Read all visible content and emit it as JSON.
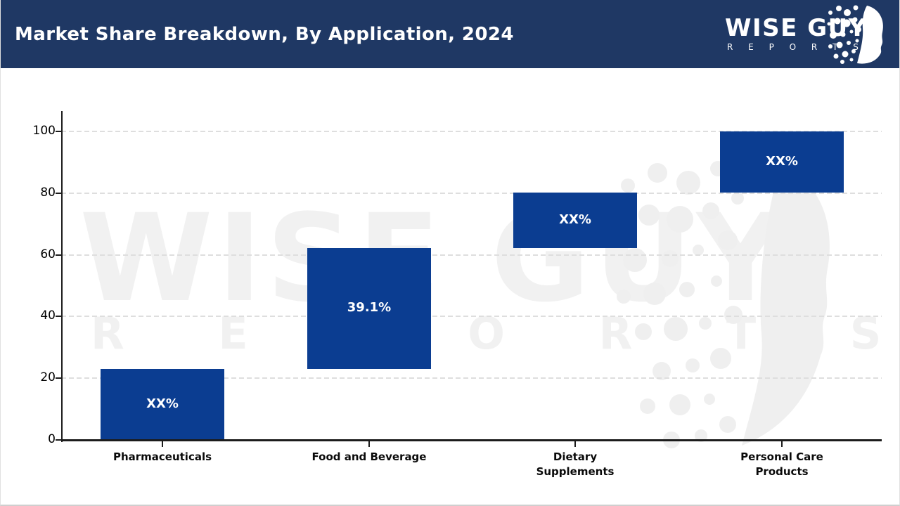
{
  "header": {
    "title": "Market Share Breakdown, By Application, 2024",
    "logo": {
      "primary": "WISE GUY",
      "secondary": "R E P O R T S"
    }
  },
  "watermark": {
    "primary": "WISE GUY",
    "secondary": "R E P O R T S"
  },
  "colors": {
    "header_bg": "#1f3864",
    "bar": "#0b3d91",
    "bar_label": "#ffffff",
    "gridline": "#dedede",
    "axis": "#1c1c1c",
    "watermark": "#f1f1f1"
  },
  "chart_data": {
    "type": "bar",
    "subtype": "waterfall",
    "title": "Market Share Breakdown, By Application, 2024",
    "xlabel": "",
    "ylabel": "",
    "grid": "horizontal-dashed",
    "legend": "none",
    "ylim": [
      0,
      105
    ],
    "y_ticks": [
      0,
      20,
      40,
      60,
      80,
      100
    ],
    "categories": [
      "Pharmaceuticals",
      "Food and Beverage",
      "Dietary Supplements",
      "Personal Care Products"
    ],
    "x_label_lines": [
      [
        "Pharmaceuticals"
      ],
      [
        "Food and Beverage"
      ],
      [
        "Dietary",
        "Supplements"
      ],
      [
        "Personal Care",
        "Products"
      ]
    ],
    "segments": [
      {
        "category": "Pharmaceuticals",
        "start": 0,
        "end": 23.0,
        "value": 23.0,
        "label": "XX%"
      },
      {
        "category": "Food and Beverage",
        "start": 23.0,
        "end": 62.1,
        "value": 39.1,
        "label": "39.1%"
      },
      {
        "category": "Dietary Supplements",
        "start": 62.1,
        "end": 80.1,
        "value": 18.0,
        "label": "XX%"
      },
      {
        "category": "Personal Care Products",
        "start": 80.1,
        "end": 100.0,
        "value": 19.9,
        "label": "XX%"
      }
    ]
  }
}
